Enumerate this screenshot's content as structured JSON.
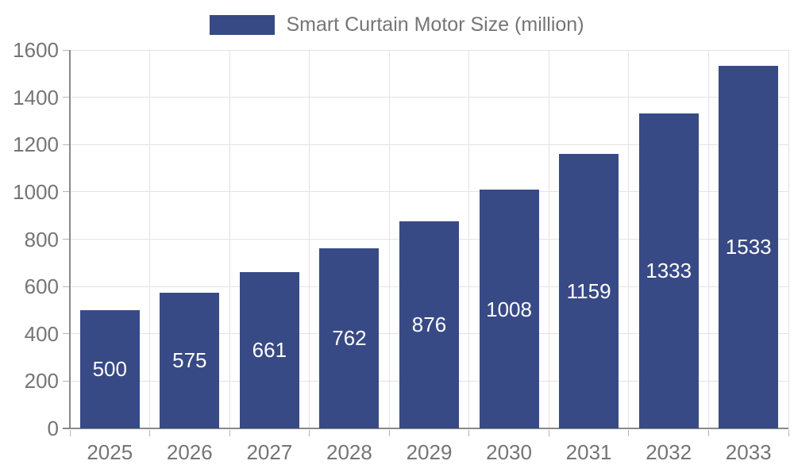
{
  "legend": {
    "label": "Smart Curtain Motor Size (million)"
  },
  "chart_data": {
    "type": "bar",
    "title": "Smart Curtain Motor Size (million)",
    "xlabel": "",
    "ylabel": "",
    "categories": [
      "2025",
      "2026",
      "2027",
      "2028",
      "2029",
      "2030",
      "2031",
      "2032",
      "2033"
    ],
    "series": [
      {
        "name": "Smart Curtain Motor Size (million)",
        "values": [
          500,
          575,
          661,
          762,
          876,
          1008,
          1159,
          1333,
          1533
        ]
      }
    ],
    "ylim": [
      0,
      1600
    ],
    "yticks": [
      0,
      200,
      400,
      600,
      800,
      1000,
      1200,
      1400,
      1600
    ],
    "grid": true,
    "legend_position": "top",
    "value_label_position": "inside-center",
    "colors": {
      "bar": "#384A85",
      "grid": "#e2e2e8",
      "axis": "#8a8a8a",
      "tick": "#b5b5b5",
      "text": "#757575",
      "value_text": "#ffffff",
      "background": "#ffffff"
    }
  }
}
